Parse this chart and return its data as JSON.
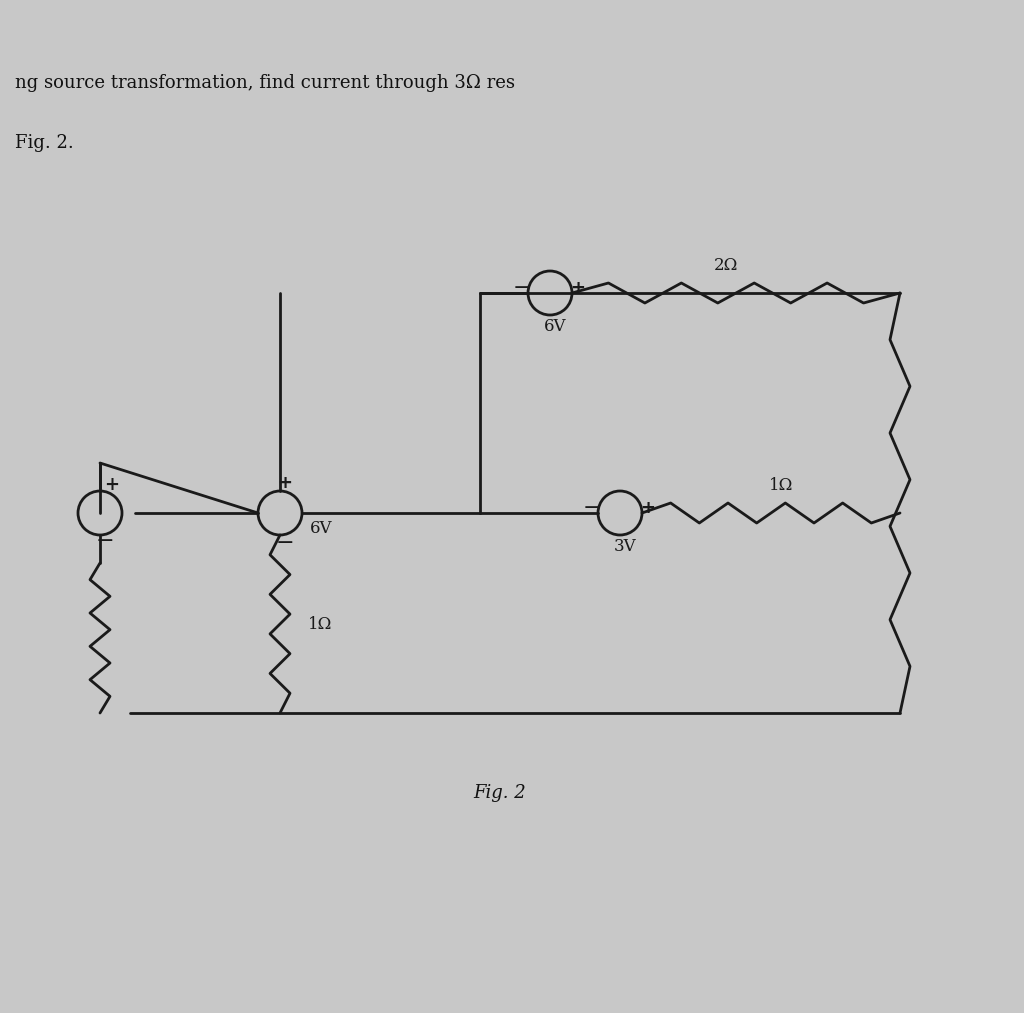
{
  "title_line1": "ng source transformation, find current through 3Ω res",
  "title_line2": "Fig. 2.",
  "caption": "Fig. 2",
  "bg_color": "#c8c8c8",
  "line_color": "#1a1a1a",
  "component_color": "#1a1a1a",
  "fig_width": 10.24,
  "fig_height": 10.13
}
